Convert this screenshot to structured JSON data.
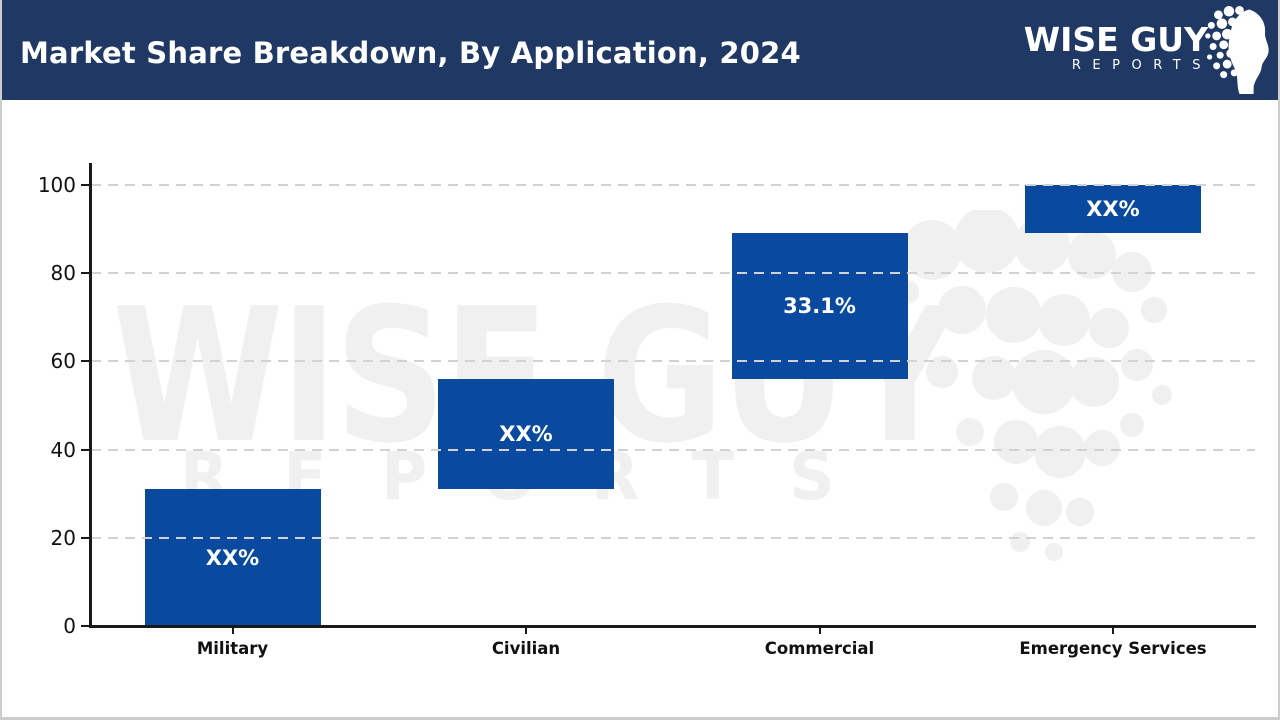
{
  "header": {
    "title": "Market Share Breakdown, By Application, 2024",
    "logo": {
      "line1": "WISE GUY",
      "line2": "REPORTS"
    }
  },
  "watermark": {
    "line1": "WISE GUY",
    "line2": "REPORTS"
  },
  "colors": {
    "header_bg": "#1f3864",
    "bar": "#0a4a9e",
    "grid": "#d2d2d2",
    "axis": "#1a1a1a",
    "watermark": "#f0f0f0",
    "bar_label_text": "#ffffff",
    "page_border": "#cccccc"
  },
  "chart_data": {
    "type": "bar",
    "subtype": "waterfall-floating-bars",
    "title": "Market Share Breakdown, By Application, 2024",
    "categories": [
      "Military",
      "Civilian",
      "Commercial",
      "Emergency Services"
    ],
    "bars": [
      {
        "category": "Military",
        "start": 0,
        "end": 31,
        "label": "XX%"
      },
      {
        "category": "Civilian",
        "start": 31,
        "end": 56,
        "label": "XX%"
      },
      {
        "category": "Commercial",
        "start": 56,
        "end": 89.1,
        "label": "33.1%"
      },
      {
        "category": "Emergency Services",
        "start": 89.1,
        "end": 100,
        "label": "XX%"
      }
    ],
    "yticks": [
      0,
      20,
      40,
      60,
      80,
      100
    ],
    "ylim": [
      0,
      105
    ],
    "xlabel": "",
    "ylabel": "",
    "grid": "horizontal-dashed",
    "legend": "none"
  }
}
